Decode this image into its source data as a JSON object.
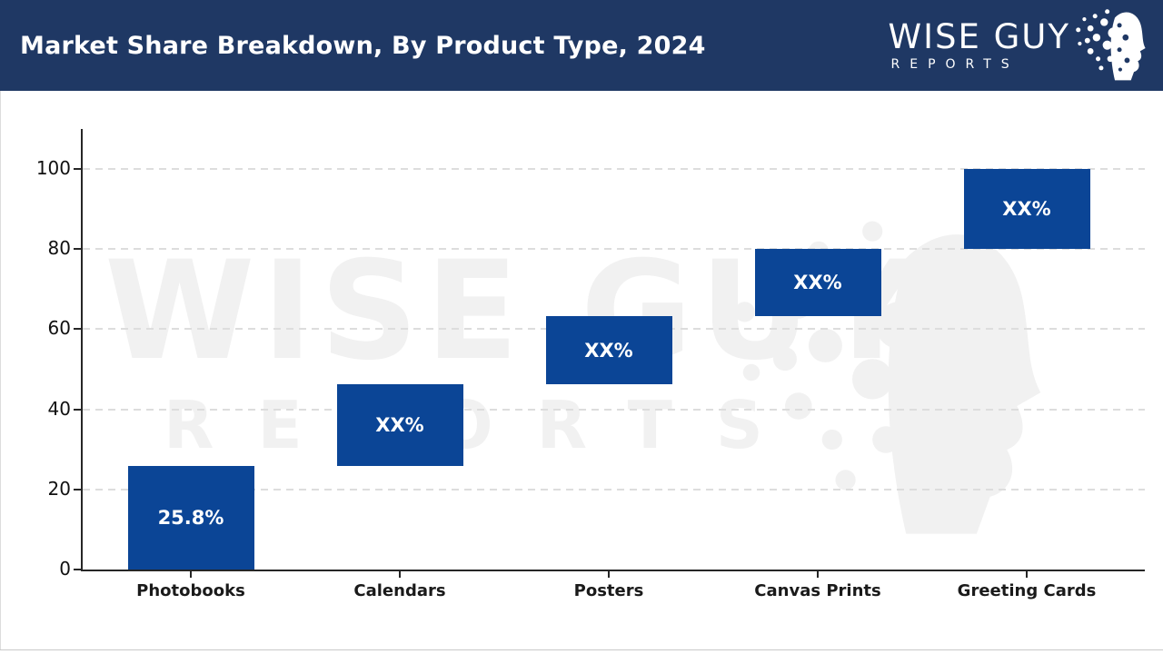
{
  "header": {
    "title": "Market Share Breakdown, By Product Type, 2024",
    "logo": {
      "line1": "WISE GUY",
      "line2": "REPORTS"
    }
  },
  "watermark": {
    "line1": "WISE GUY",
    "line2": "REPORTS"
  },
  "colors": {
    "header_bg": "#1F3864",
    "bar": "#0B4596",
    "bar_label": "#FFFFFF",
    "grid": "#DDDDDD",
    "axis": "#262626",
    "tick_label": "#111111",
    "watermark": "#F1F1F1"
  },
  "chart_data": {
    "type": "bar",
    "subtype": "waterfall",
    "title": "Market Share Breakdown, By Product Type, 2024",
    "categories": [
      "Photobooks",
      "Calendars",
      "Posters",
      "Canvas Prints",
      "Greeting Cards"
    ],
    "segments": [
      {
        "category": "Photobooks",
        "start": 0,
        "end": 25.8,
        "label": "25.8%"
      },
      {
        "category": "Calendars",
        "start": 25.8,
        "end": 46.2,
        "label": "XX%"
      },
      {
        "category": "Posters",
        "start": 46.2,
        "end": 63.3,
        "label": "XX%"
      },
      {
        "category": "Canvas Prints",
        "start": 63.3,
        "end": 80,
        "label": "XX%"
      },
      {
        "category": "Greeting Cards",
        "start": 80,
        "end": 100,
        "label": "XX%"
      }
    ],
    "ylim": [
      0,
      100
    ],
    "yticks": [
      0,
      20,
      40,
      60,
      80,
      100
    ],
    "xlabel": "",
    "ylabel": "",
    "grid": "horizontal-dashed",
    "legend": "none"
  }
}
